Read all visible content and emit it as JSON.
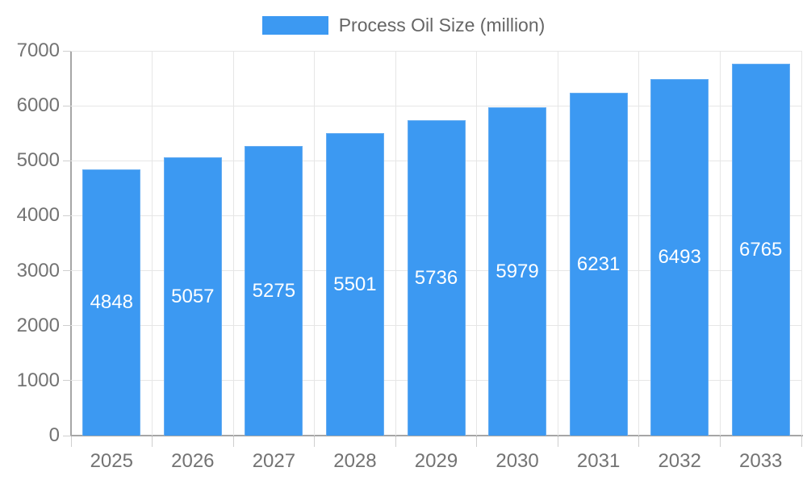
{
  "chart_data": {
    "type": "bar",
    "title": "Process Oil Size (million)",
    "categories": [
      "2025",
      "2026",
      "2027",
      "2028",
      "2029",
      "2030",
      "2031",
      "2032",
      "2033"
    ],
    "values": [
      4848,
      5057,
      5275,
      5501,
      5736,
      5979,
      6231,
      6493,
      6765
    ],
    "series_name": "Process Oil Size (million)",
    "xlabel": "",
    "ylabel": "",
    "ylim": [
      0,
      7000
    ],
    "y_ticks": [
      0,
      1000,
      2000,
      3000,
      4000,
      5000,
      6000,
      7000
    ],
    "grid": "both",
    "legend_position": "top-center",
    "value_labels": "inside-center-white"
  },
  "colors": {
    "bar": "#3c99f2",
    "bar_edge": "#66adf2",
    "gridline": "#e6e6e6",
    "axis_line": "#a6a6a6",
    "tick": "#cfcfcf",
    "axis_text": "#737373",
    "legend_text": "#666666",
    "value_text": "#ffffff",
    "background": "#ffffff"
  }
}
